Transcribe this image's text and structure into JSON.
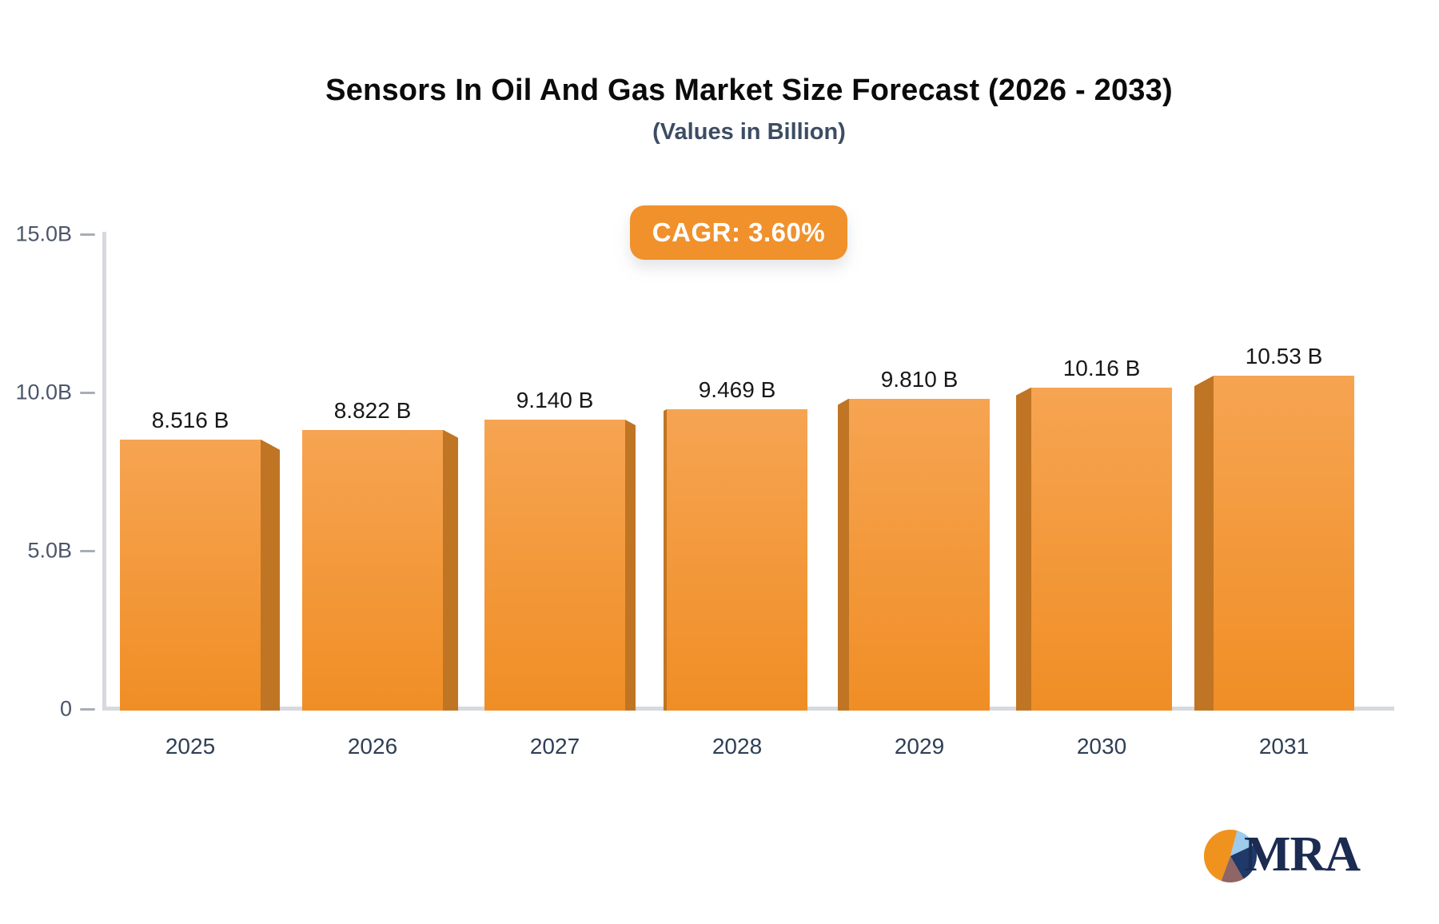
{
  "title": "Sensors In Oil And Gas Market Size Forecast (2026 - 2033)",
  "subtitle": "(Values in Billion)",
  "badge": {
    "label": "CAGR: 3.60%"
  },
  "logo": {
    "text": "MRA",
    "pie_icon_slices": [
      {
        "name": "orange",
        "color": "#f0921e",
        "from": 200,
        "to": 375
      },
      {
        "name": "light-blue",
        "color": "#9ccbec",
        "from": 15,
        "to": 65
      },
      {
        "name": "navy",
        "color": "#1f3968",
        "from": 65,
        "to": 150
      },
      {
        "name": "brown",
        "color": "#8f6565",
        "from": 150,
        "to": 200
      }
    ]
  },
  "colors": {
    "bar_top": "#f6a452",
    "bar_bottom": "#f08e25",
    "bar_side": "#bf7524",
    "axis": "#d7d9de",
    "badge_bg": "#f0912c",
    "badge_text": "#ffffff",
    "title": "#0b0b0c",
    "subtitle": "#3d4c63",
    "value_label": "#17181a",
    "x_label": "#2e3f54",
    "y_label": "#4c566a",
    "logo_text": "#1c2b52"
  },
  "chart_data": {
    "type": "bar",
    "title": "Sensors In Oil And Gas Market Size Forecast (2026 - 2033)",
    "subtitle": "(Values in Billion)",
    "categories": [
      "2025",
      "2026",
      "2027",
      "2028",
      "2029",
      "2030",
      "2031"
    ],
    "values": [
      8.516,
      8.822,
      9.14,
      9.469,
      9.81,
      10.16,
      10.53
    ],
    "value_labels": [
      "8.516 B",
      "8.822 B",
      "9.140 B",
      "9.469 B",
      "9.810 B",
      "10.16 B",
      "10.53 B"
    ],
    "xlabel": "",
    "ylabel": "",
    "ylim": [
      0,
      15
    ],
    "yticks": [
      {
        "value": 15,
        "label": "15.0B"
      },
      {
        "value": 10,
        "label": "10.0B"
      },
      {
        "value": 5,
        "label": "5.0B"
      },
      {
        "value": 0,
        "label": "0"
      }
    ],
    "grid": false,
    "legend": false,
    "annotation": "CAGR: 3.60%",
    "bar_style": "3d-perspective"
  }
}
